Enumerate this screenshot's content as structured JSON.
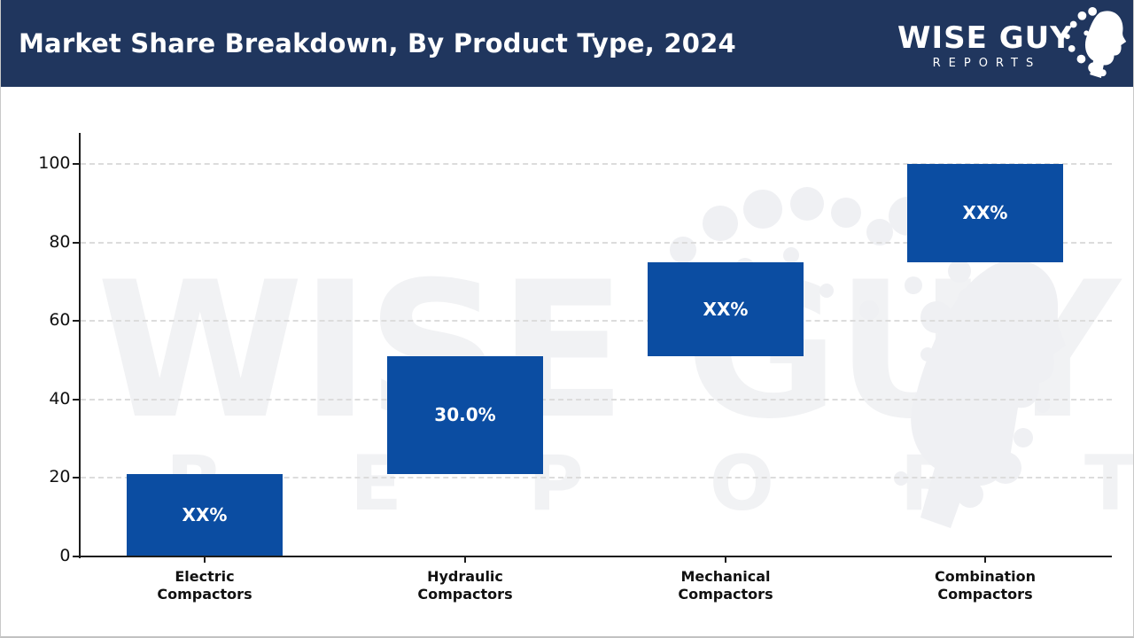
{
  "header": {
    "title": "Market Share Breakdown, By Product Type, 2024",
    "logo": {
      "line1": "WISE GUY",
      "line2": "REPORTS"
    }
  },
  "watermark": {
    "line1": "WISE GUY",
    "line2": "R E P O R T S"
  },
  "colors": {
    "header_bg": "#20365e",
    "bar": "#0b4da2",
    "bar_label_text": "#ffffff",
    "grid": "#dcdcdc",
    "axis": "#1c1c1c",
    "tick_text": "#111111",
    "watermark": "#f1f2f4"
  },
  "chart_data": {
    "type": "bar",
    "subtype": "waterfall",
    "title": "Market Share Breakdown, By Product Type, 2024",
    "categories": [
      "Electric\nCompactors",
      "Hydraulic\nCompactors",
      "Mechanical\nCompactors",
      "Combination\nCompactors"
    ],
    "segments": [
      {
        "category": "Electric Compactors",
        "start": 0,
        "end": 21,
        "label": "XX%"
      },
      {
        "category": "Hydraulic Compactors",
        "start": 21,
        "end": 51,
        "label": "30.0%"
      },
      {
        "category": "Mechanical Compactors",
        "start": 51,
        "end": 75,
        "label": "XX%"
      },
      {
        "category": "Combination Compactors",
        "start": 75,
        "end": 100,
        "label": "XX%"
      }
    ],
    "ylim": [
      0,
      100
    ],
    "yticks": [
      0,
      20,
      40,
      60,
      80,
      100
    ],
    "xlabel": "",
    "ylabel": "",
    "grid": "horizontal-dashed",
    "legend": "none"
  }
}
